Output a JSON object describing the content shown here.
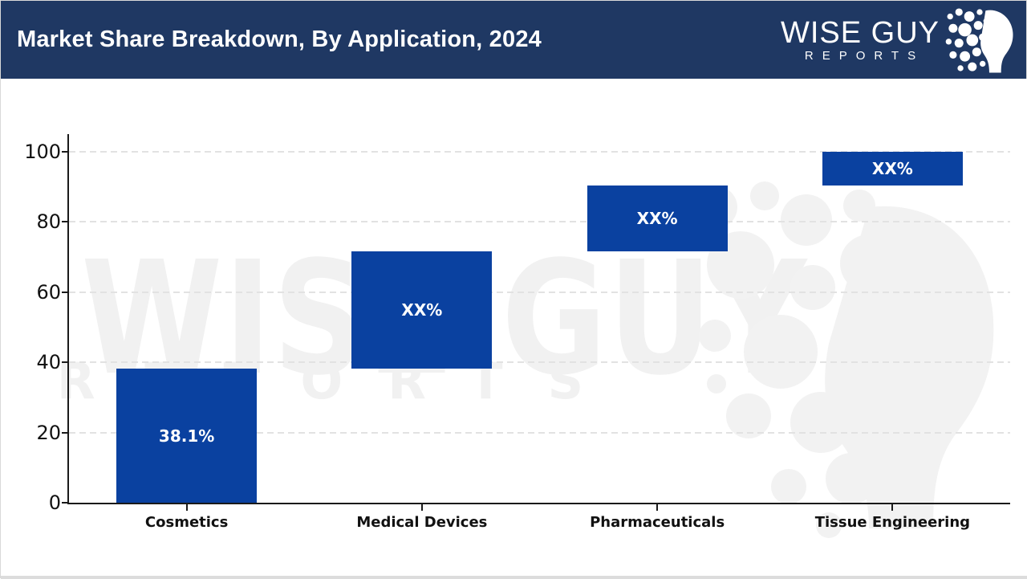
{
  "header": {
    "title": "Market Share Breakdown, By Application, 2024",
    "logo_line1": "WISE GUY",
    "logo_line2": "REPORTS"
  },
  "watermark": {
    "line1": "WISE GUY",
    "line2": "REPORTS"
  },
  "colors": {
    "header_bg": "#1f3863",
    "bar_fill": "#0a41a0",
    "grid": "#e2e2e2",
    "axis": "#1a1a1a",
    "bar_label": "#ffffff",
    "watermark": "#f1f1f1",
    "bottom_strip": "#dcdcdc"
  },
  "chart_data": {
    "type": "bar",
    "variant": "waterfall",
    "title": "Market Share Breakdown, By Application, 2024",
    "categories": [
      "Cosmetics",
      "Medical Devices",
      "Pharmaceuticals",
      "Tissue Engineering"
    ],
    "segments": [
      {
        "category": "Cosmetics",
        "start": 0,
        "end": 38.1,
        "label": "38.1%"
      },
      {
        "category": "Medical Devices",
        "start": 38.1,
        "end": 71.5,
        "label": "XX%"
      },
      {
        "category": "Pharmaceuticals",
        "start": 71.5,
        "end": 90.3,
        "label": "XX%"
      },
      {
        "category": "Tissue Engineering",
        "start": 90.3,
        "end": 100,
        "label": "XX%"
      }
    ],
    "values_pct": [
      38.1,
      33.4,
      18.8,
      9.7
    ],
    "xlabel": "",
    "ylabel": "",
    "yticks": [
      0,
      20,
      40,
      60,
      80,
      100
    ],
    "ylim": [
      0,
      105
    ],
    "grid": "dashed-horizontal-only",
    "legend": "none"
  }
}
